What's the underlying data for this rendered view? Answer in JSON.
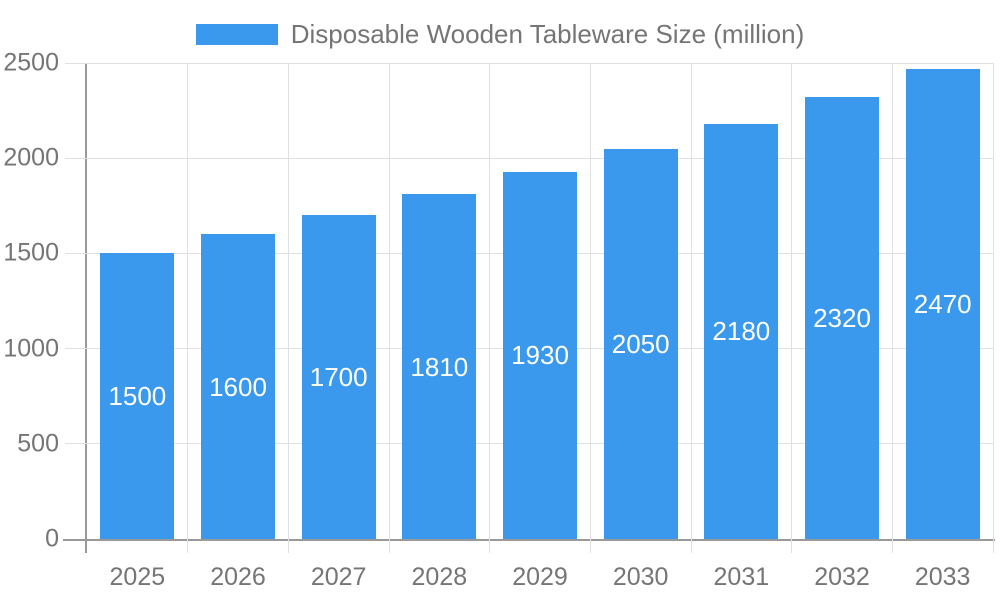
{
  "colors": {
    "bar": "#3A99EC",
    "grid": "#E0E0E0",
    "axis": "#999999",
    "text": "#757575",
    "value_label": "#FFFFFF",
    "background": "#FFFFFF"
  },
  "legend": {
    "label": "Disposable Wooden Tableware Size (million)"
  },
  "chart_data": {
    "type": "bar",
    "title": "Disposable Wooden Tableware Size (million)",
    "legend": "Disposable Wooden Tableware Size (million)",
    "legend_position": "top",
    "categories": [
      "2025",
      "2026",
      "2027",
      "2028",
      "2029",
      "2030",
      "2031",
      "2032",
      "2033"
    ],
    "values": [
      1500,
      1600,
      1700,
      1810,
      1930,
      2050,
      2180,
      2320,
      2470
    ],
    "xlabel": "",
    "ylabel": "",
    "ylim": [
      0,
      2500
    ],
    "yticks": [
      0,
      500,
      1000,
      1500,
      2000,
      2500
    ],
    "grid": true,
    "value_labels": "inside-center-white"
  }
}
